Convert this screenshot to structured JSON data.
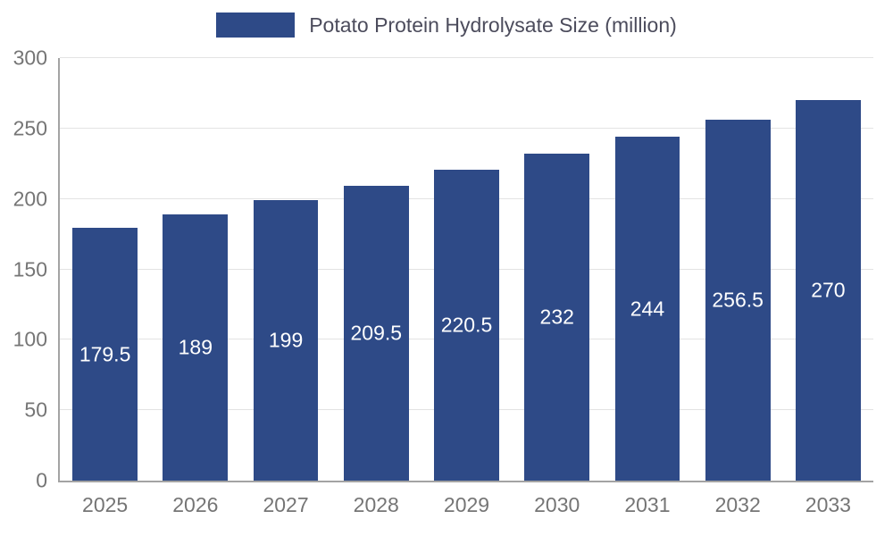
{
  "chart_data": {
    "type": "bar",
    "title": "Potato Protein Hydrolysate Size (million)",
    "categories": [
      "2025",
      "2026",
      "2027",
      "2028",
      "2029",
      "2030",
      "2031",
      "2032",
      "2033"
    ],
    "values": [
      179.5,
      189,
      199,
      209.5,
      220.5,
      232,
      244,
      256.5,
      270
    ],
    "xlabel": "",
    "ylabel": "",
    "ylim": [
      0,
      300
    ],
    "yticks": [
      0,
      50,
      100,
      150,
      200,
      250,
      300
    ],
    "grid": true,
    "legend_position": "top",
    "bar_color": "#2e4a87",
    "value_label_color": "#ffffff",
    "tick_label_color": "#757575",
    "title_color": "#4c4c5c",
    "axis_color": "#a3a3a3",
    "gridline_color": "#e3e3e3"
  }
}
